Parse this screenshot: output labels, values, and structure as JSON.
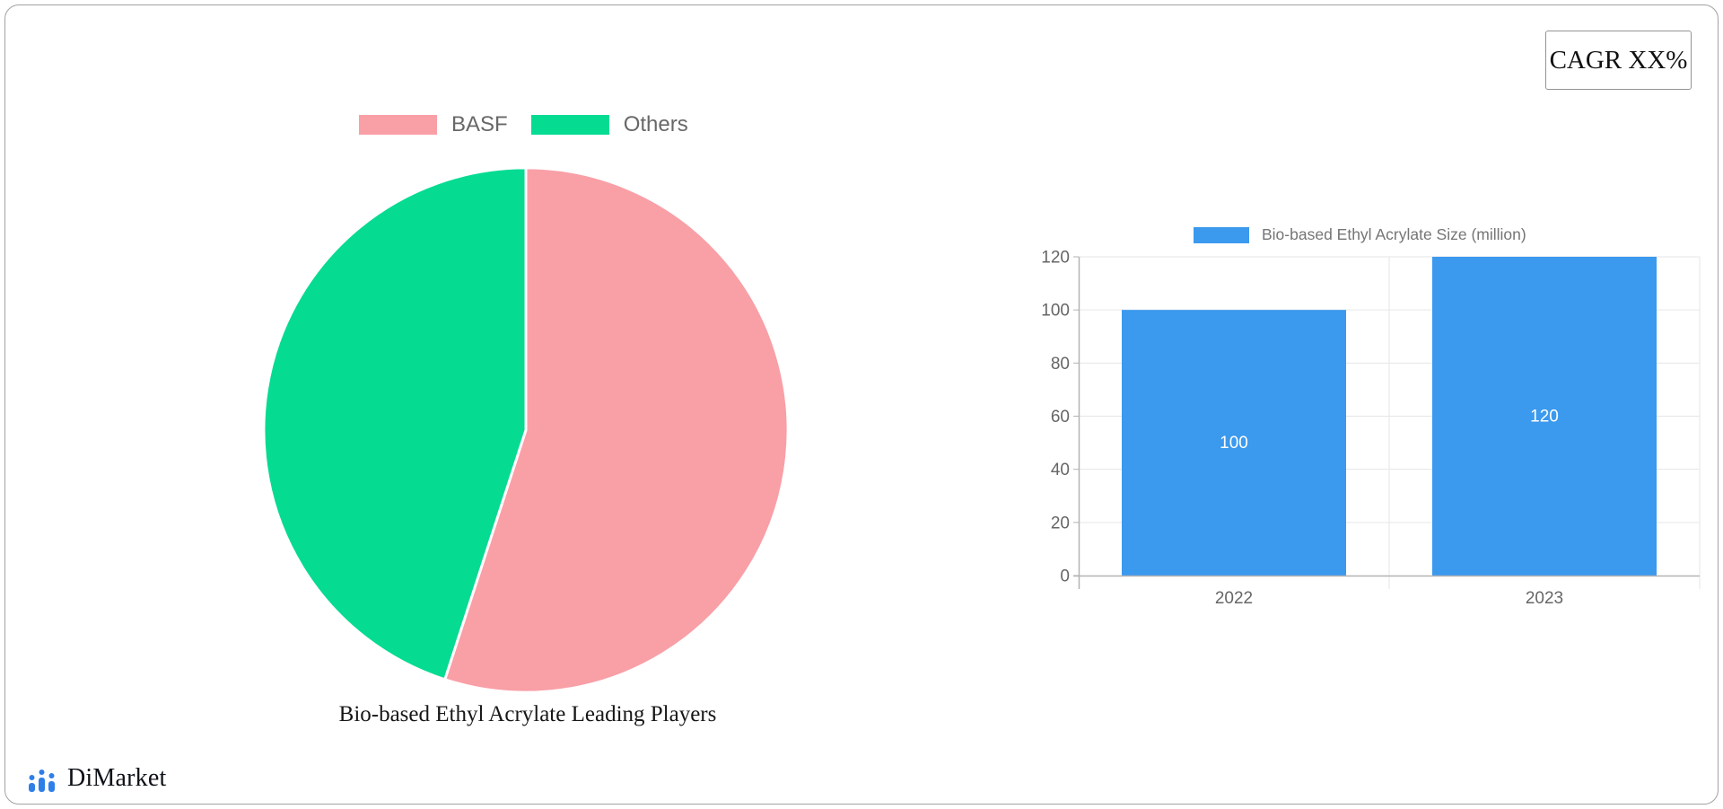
{
  "cagr": {
    "label": "CAGR XX%"
  },
  "logo": {
    "text": "DiMarket",
    "icon": "mini-bar-chart-icon",
    "icon_color": "#2F7FE8"
  },
  "chart_data": [
    {
      "type": "pie",
      "title": "Bio-based Ethyl Acrylate Leading Players",
      "labels": [
        "BASF",
        "Others"
      ],
      "values": [
        55,
        45
      ],
      "colors": [
        "#F99FA6",
        "#06DB92"
      ],
      "legend_position": "top",
      "start_angle_deg": 0,
      "direction": "clockwise",
      "slice_gap_color": "#ffffff"
    },
    {
      "type": "bar",
      "categories": [
        "2022",
        "2023"
      ],
      "series": [
        {
          "name": "Bio-based Ethyl Acrylate Size (million)",
          "values": [
            100,
            120
          ]
        }
      ],
      "bar_color": "#3B99EE",
      "value_label_color": "#ffffff",
      "ylim": [
        0,
        120
      ],
      "yticks": [
        0,
        20,
        40,
        60,
        80,
        100,
        120
      ],
      "grid": true,
      "legend_position": "top",
      "axis_color": "#b3b3b3",
      "grid_color": "#e6e6e6",
      "tick_text_color": "#666666"
    }
  ]
}
